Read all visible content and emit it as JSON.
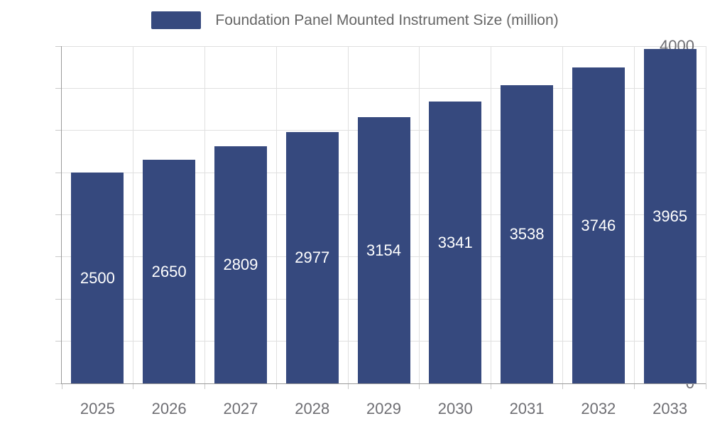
{
  "chart_data": {
    "type": "bar",
    "title": "Foundation Panel Mounted Instrument Size (million)",
    "legend": {
      "label": "Foundation Panel Mounted Instrument Size (million)",
      "position": "top-center"
    },
    "categories": [
      "2025",
      "2026",
      "2027",
      "2028",
      "2029",
      "2030",
      "2031",
      "2032",
      "2033"
    ],
    "values": [
      2500,
      2650,
      2809,
      2977,
      3154,
      3341,
      3538,
      3746,
      3965
    ],
    "xlabel": "",
    "ylabel": "",
    "ylim": [
      0,
      4000
    ],
    "ytick_step": 500,
    "yticks": [
      "0",
      "500",
      "1000",
      "1500",
      "2000",
      "2500",
      "3000",
      "3500",
      "4000"
    ],
    "grid": true,
    "data_labels_inside_bars": true,
    "colors": {
      "bar": "#36497E",
      "data_label": "#FFFFFF",
      "axis_label": "#6E6E73",
      "legend_text": "#666666",
      "gridline": "#E0E0E0",
      "axis_line": "#9A9A9A",
      "tick": "#C9C9C9",
      "background": "#FFFFFF"
    }
  }
}
